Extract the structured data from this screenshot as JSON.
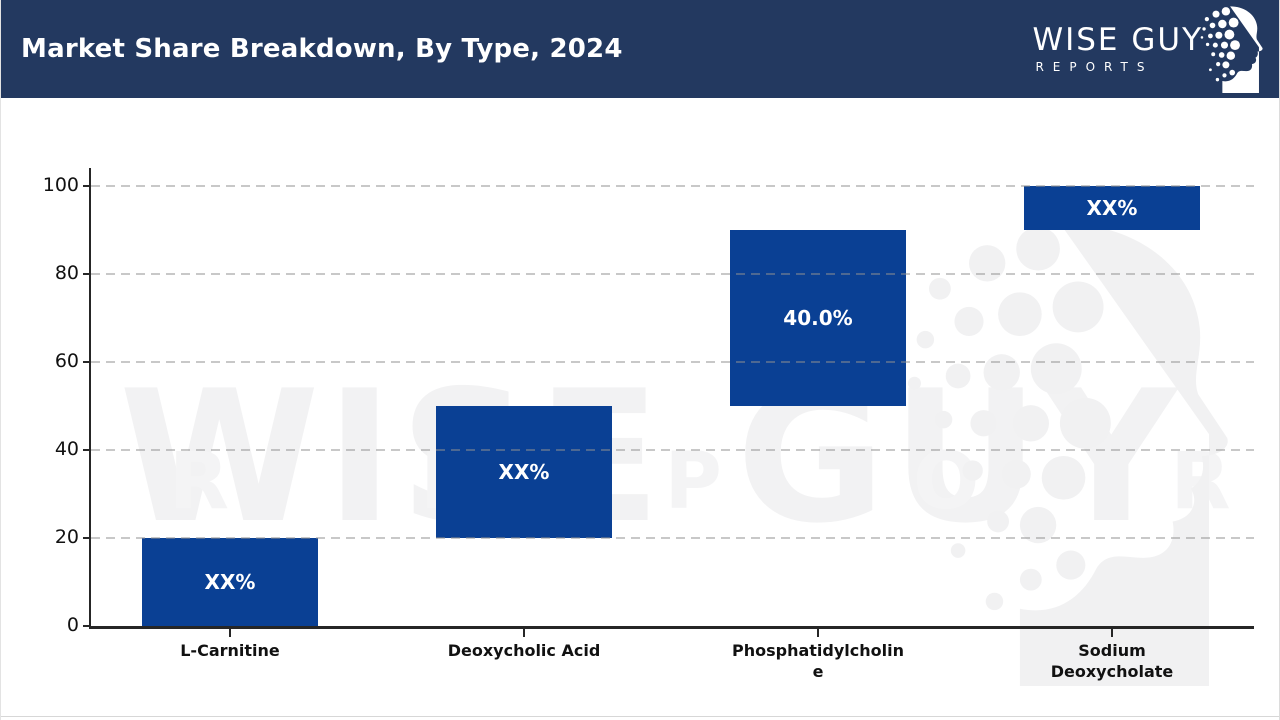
{
  "header": {
    "title": "Market Share Breakdown, By Type, 2024",
    "bg_color": "#233960",
    "logo": {
      "line1": "WISE GUY",
      "line2": "REPORTS"
    }
  },
  "watermark": {
    "line1": "WISE GUY",
    "line2": "REPORTS"
  },
  "chart_data": {
    "type": "bar",
    "subtype": "floating-waterfall-segments",
    "title": "Market Share Breakdown, By Type, 2024",
    "categories": [
      "L-Carnitine",
      "Deoxycholic Acid",
      "Phosphatidylcholine",
      "Sodium Deoxycholate"
    ],
    "category_label_lines": [
      [
        "L-Carnitine"
      ],
      [
        "Deoxycholic Acid"
      ],
      [
        "Phosphatidylcholin",
        "e"
      ],
      [
        "Sodium",
        "Deoxycholate"
      ]
    ],
    "series": [
      {
        "name": "Market Share",
        "segments": [
          {
            "category": "L-Carnitine",
            "start": 0,
            "end": 20,
            "label": "XX%"
          },
          {
            "category": "Deoxycholic Acid",
            "start": 20,
            "end": 50,
            "label": "XX%"
          },
          {
            "category": "Phosphatidylcholine",
            "start": 50,
            "end": 90,
            "label": "40.0%"
          },
          {
            "category": "Sodium Deoxycholate",
            "start": 90,
            "end": 100,
            "label": "XX%"
          }
        ]
      }
    ],
    "xlabel": "",
    "ylabel": "",
    "ylim": [
      0,
      100
    ],
    "yticks": [
      0,
      20,
      40,
      60,
      80,
      100
    ],
    "grid": "horizontal-dashed",
    "legend": "none",
    "bar_color": "#0A4094",
    "bar_label_color": "#ffffff",
    "axis_color": "#262626",
    "tick_text_color": "#111111"
  }
}
